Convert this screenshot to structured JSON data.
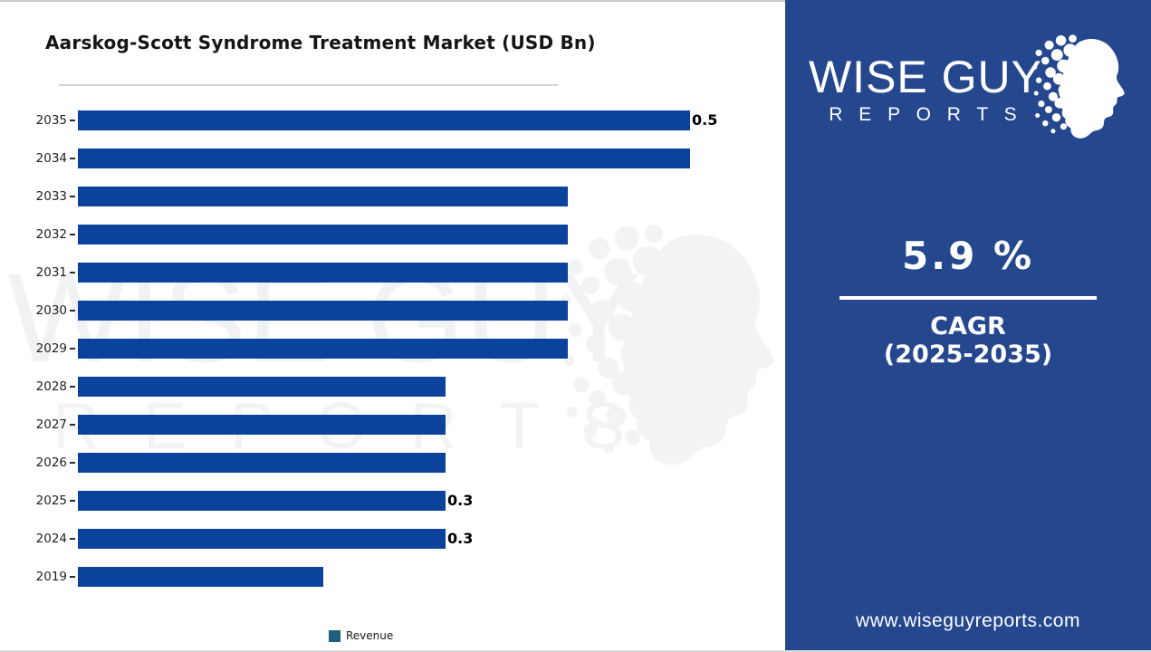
{
  "header": {
    "title": "Aarskog-Scott Syndrome Treatment Market (USD Bn)"
  },
  "chart_data": {
    "type": "bar",
    "orientation": "horizontal",
    "title": "Aarskog-Scott Syndrome Treatment Market (USD Bn)",
    "categories": [
      "2035",
      "2034",
      "2033",
      "2032",
      "2031",
      "2030",
      "2029",
      "2028",
      "2027",
      "2026",
      "2025",
      "2024",
      "2019"
    ],
    "values": [
      0.5,
      0.5,
      0.4,
      0.4,
      0.4,
      0.4,
      0.4,
      0.3,
      0.3,
      0.3,
      0.3,
      0.3,
      0.2
    ],
    "bar_labels": [
      "0.5",
      "",
      "",
      "",
      "",
      "",
      "",
      "",
      "",
      "",
      "0.3",
      "0.3",
      ""
    ],
    "xlim": [
      0,
      0.55
    ],
    "xlabel": "",
    "ylabel": "",
    "grid": false,
    "bar_color": "#0b429c",
    "legend": {
      "position": "bottom-center",
      "items": [
        {
          "label": "Revenue",
          "color": "#1d6080"
        }
      ]
    }
  },
  "watermark": {
    "line1": "WISE GUY",
    "line2": "R E P O R T S",
    "head_icon": "dotted-head-profile"
  },
  "sidebar": {
    "bg_color": "#24478e",
    "logo": {
      "line1": "WISE GUY",
      "line2": "R E P O R T S",
      "head_icon": "dotted-head-profile"
    },
    "cagr_value": "5.9 %",
    "cagr_line1": "CAGR",
    "cagr_line2": "(2025-2035)",
    "website": "www.wiseguyreports.com"
  }
}
